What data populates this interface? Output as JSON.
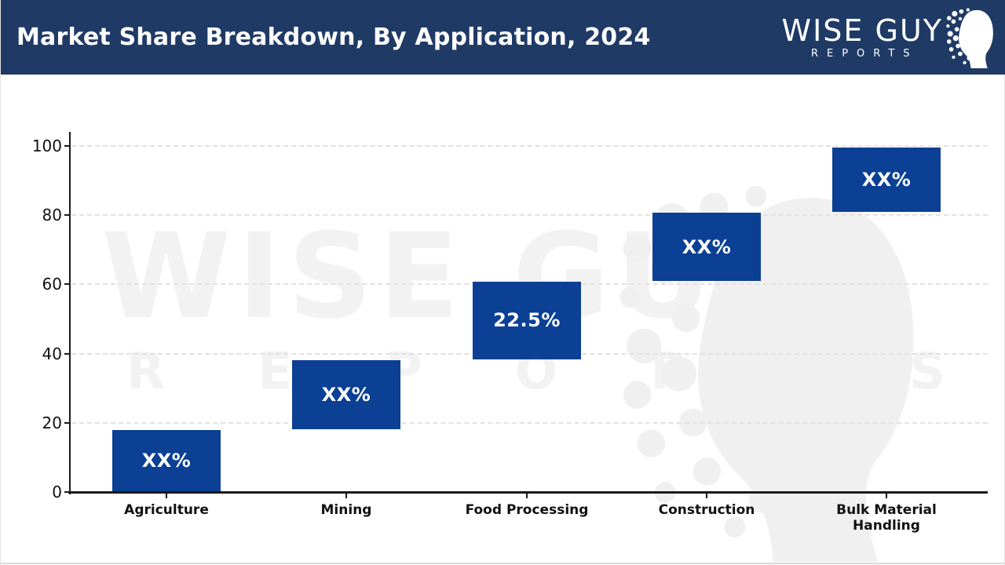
{
  "header": {
    "title": "Market Share Breakdown, By Application, 2024",
    "bg_color": "#203a66",
    "logo": {
      "line1": "WISE GUY",
      "line2": "REPORTS"
    }
  },
  "watermark": {
    "line1": "WISE GUY",
    "line2": "R E P O R T S"
  },
  "chart_data": {
    "type": "bar",
    "variant": "waterfall-floating-bars",
    "title": "Market Share Breakdown, By Application, 2024",
    "categories": [
      "Agriculture",
      "Mining",
      "Food Processing",
      "Construction",
      "Bulk Material Handling"
    ],
    "segments": [
      {
        "category": "Agriculture",
        "start": 0,
        "end": 18,
        "label": "XX%"
      },
      {
        "category": "Mining",
        "start": 18.2,
        "end": 38.1,
        "label": "XX%"
      },
      {
        "category": "Food Processing",
        "start": 38.3,
        "end": 60.8,
        "label": "22.5%"
      },
      {
        "category": "Construction",
        "start": 61,
        "end": 80.7,
        "label": "XX%"
      },
      {
        "category": "Bulk Material Handling",
        "start": 80.9,
        "end": 99.6,
        "label": "XX%"
      }
    ],
    "xlabel": "",
    "ylabel": "",
    "ylim": [
      0,
      100
    ],
    "yticks": [
      "0",
      "20",
      "40",
      "60",
      "80",
      "100"
    ],
    "grid": "dashed-horizontal-light-gray",
    "legend": "none",
    "bar_color": "#0b4094",
    "bar_label_color": "#ffffff",
    "axis_color": "#1a1a1a"
  }
}
